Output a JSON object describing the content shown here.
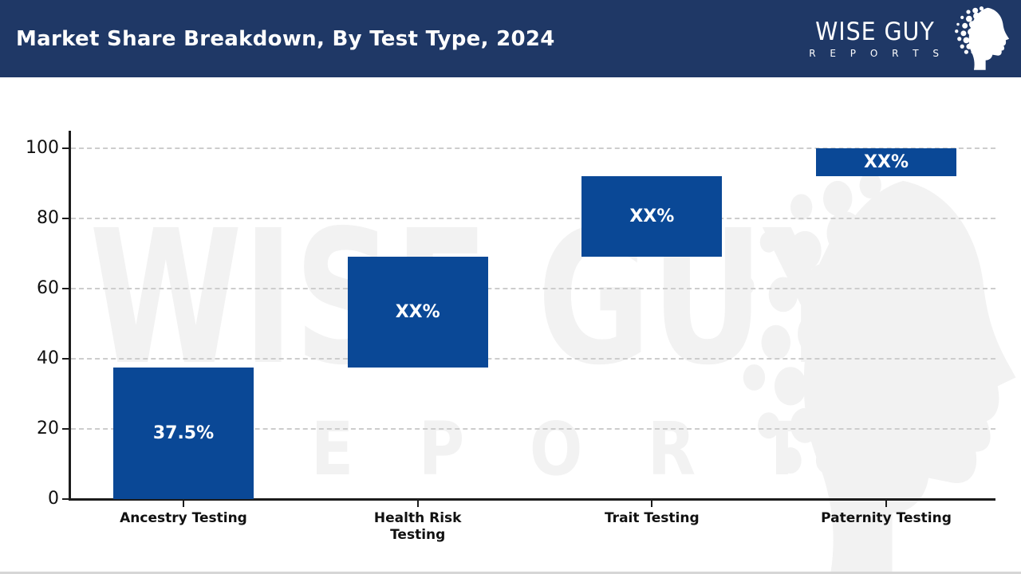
{
  "colors": {
    "header_bg": "#1f3866",
    "bar_blue": "#0a4896",
    "watermark": "#f2f2f2",
    "gridline": "#cdcdcd"
  },
  "header": {
    "title": "Market Share Breakdown, By Test Type, 2024",
    "logo_line1": "WISE GUY",
    "logo_line2": "R E P O R T S"
  },
  "watermark": {
    "line1": "WISE GUY",
    "line2": "R E P O R T S"
  },
  "chart_data": {
    "type": "bar",
    "subtype": "waterfall",
    "title": "Market Share Breakdown, By Test Type, 2024",
    "categories": [
      "Ancestry Testing",
      "Health Risk\nTesting",
      "Trait Testing",
      "Paternity Testing"
    ],
    "segments": [
      {
        "name": "Ancestry Testing",
        "start": 0,
        "end": 37.5,
        "label": "37.5%"
      },
      {
        "name": "Health Risk Testing",
        "start": 37.5,
        "end": 69,
        "label": "XX%"
      },
      {
        "name": "Trait Testing",
        "start": 69,
        "end": 92,
        "label": "XX%"
      },
      {
        "name": "Paternity Testing",
        "start": 92,
        "end": 100,
        "label": "XX%"
      }
    ],
    "ylim": [
      0,
      100
    ],
    "yticks": [
      0,
      20,
      40,
      60,
      80,
      100
    ],
    "grid": true,
    "legend": false,
    "bar_color": "#0a4896"
  }
}
